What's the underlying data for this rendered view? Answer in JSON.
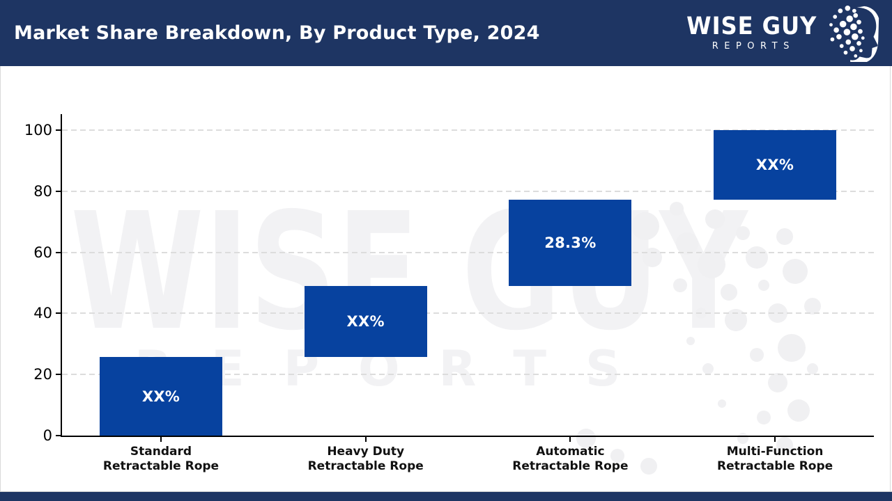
{
  "header": {
    "title": "Market Share Breakdown, By Product Type, 2024"
  },
  "logo": {
    "line1": "WISE GUY",
    "line2": "REPORTS"
  },
  "watermark": {
    "line1": "WISE GUY",
    "line2": "REPORTS"
  },
  "chart_data": {
    "type": "bar",
    "variant": "floating-waterfall-segments",
    "title": "Market Share Breakdown, By Product Type, 2024",
    "xlabel": "",
    "ylabel": "",
    "ylim": [
      0,
      100
    ],
    "yticks": [
      0,
      20,
      40,
      60,
      80,
      100
    ],
    "grid": "horizontal dashed",
    "legend": "none",
    "bar_color": "#07429f",
    "bar_label_color": "#ffffff",
    "categories": [
      "Standard Retractable Rope",
      "Heavy Duty Retractable Rope",
      "Automatic Retractable Rope",
      "Multi-Function Retractable Rope"
    ],
    "bars": [
      {
        "category_lines": [
          "Standard",
          "Retractable Rope"
        ],
        "label": "XX%",
        "start": 0,
        "end": 25.7
      },
      {
        "category_lines": [
          "Heavy Duty",
          "Retractable Rope"
        ],
        "label": "XX%",
        "start": 25.7,
        "end": 48.9
      },
      {
        "category_lines": [
          "Automatic",
          "Retractable Rope"
        ],
        "label": "28.3%",
        "start": 48.9,
        "end": 77.2
      },
      {
        "category_lines": [
          "Multi-Function",
          "Retractable Rope"
        ],
        "label": "XX%",
        "start": 77.2,
        "end": 100
      }
    ]
  },
  "colors": {
    "header_bg": "#1e3563",
    "footer_bg": "#1e3563",
    "bar": "#07429f",
    "grid": "#dcdcdc",
    "axis": "#000000",
    "watermark": "#f2f2f4"
  }
}
